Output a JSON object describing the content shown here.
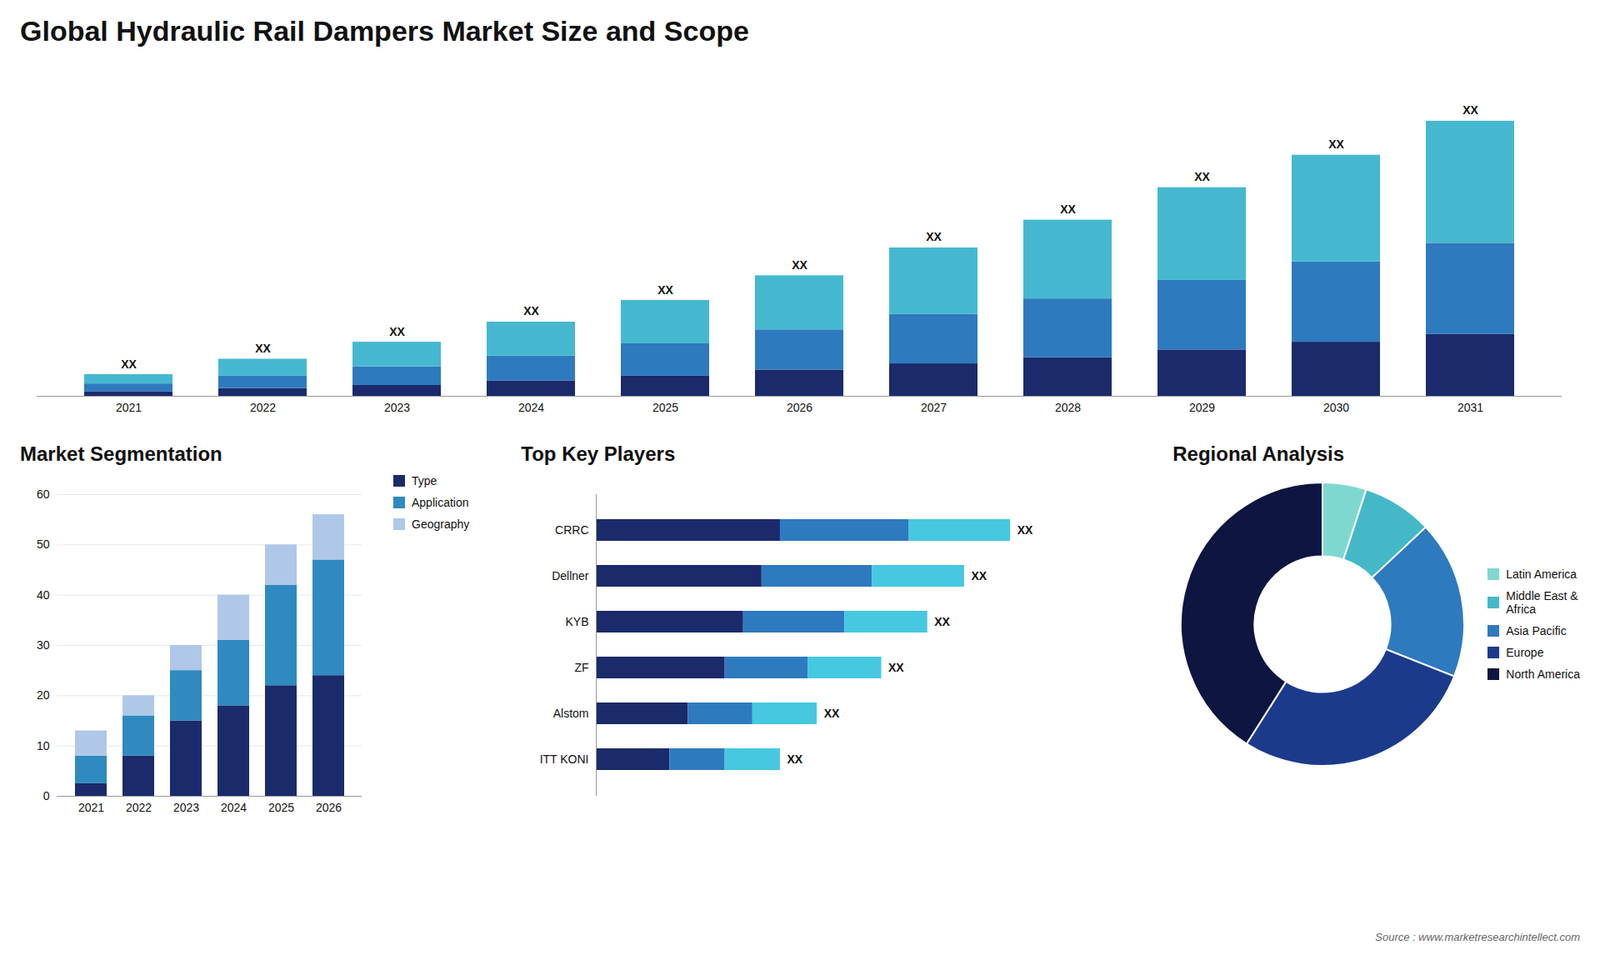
{
  "chart_data": [
    {
      "type": "bar",
      "stacked": true,
      "title": "Global Hydraulic Rail Dampers Market Size and Scope",
      "categories": [
        "2021",
        "2022",
        "2023",
        "2024",
        "2025",
        "2026",
        "2027",
        "2028",
        "2029",
        "2030",
        "2031"
      ],
      "series": [
        {
          "color": "#1b2a6b",
          "values": [
            1.5,
            2.5,
            3.5,
            5.0,
            6.5,
            8.5,
            10.5,
            12.5,
            15.0,
            17.5,
            20.0
          ]
        },
        {
          "color": "#2e7abf",
          "values": [
            2.5,
            4.0,
            6.0,
            8.0,
            10.5,
            13.0,
            16.0,
            19.0,
            22.5,
            26.0,
            29.5
          ]
        },
        {
          "color": "#45b8d0",
          "values": [
            3.0,
            5.5,
            8.0,
            11.0,
            14.0,
            17.5,
            21.5,
            25.5,
            30.0,
            34.5,
            39.5
          ]
        }
      ],
      "ylim": [
        0,
        103
      ],
      "tick_labels": "x",
      "annotations": [
        "XX",
        "XX",
        "XX",
        "XX",
        "XX",
        "XX",
        "XX",
        "XX",
        "XX",
        "XX",
        "XX"
      ]
    },
    {
      "type": "bar",
      "stacked": true,
      "title": "Market Segmentation",
      "categories": [
        "2021",
        "2022",
        "2023",
        "2024",
        "2025",
        "2026"
      ],
      "series": [
        {
          "name": "Type",
          "color": "#1b2a6b",
          "values": [
            2.5,
            8.0,
            15.0,
            18.0,
            22.0,
            24.0
          ]
        },
        {
          "name": "Application",
          "color": "#2e8abf",
          "values": [
            5.5,
            8.0,
            10.0,
            13.0,
            20.0,
            23.0
          ]
        },
        {
          "name": "Geography",
          "color": "#b0c8e8",
          "values": [
            5.0,
            4.0,
            5.0,
            9.0,
            8.0,
            9.0
          ]
        }
      ],
      "ylim": [
        0,
        60
      ],
      "yticks": [
        0,
        10,
        20,
        30,
        40,
        50,
        60
      ],
      "grid": true,
      "legend": "right"
    },
    {
      "type": "bar",
      "orientation": "horizontal",
      "stacked": true,
      "title": "Top Key Players",
      "categories": [
        "CRRC",
        "Dellner",
        "KYB",
        "ZF",
        "Alstom",
        "ITT KONI"
      ],
      "series": [
        {
          "color": "#1b2a6b",
          "values": [
            40,
            36,
            32,
            28,
            20,
            16
          ]
        },
        {
          "color": "#2e7abf",
          "values": [
            28,
            24,
            22,
            18,
            14,
            12
          ]
        },
        {
          "color": "#45c8e0",
          "values": [
            22,
            20,
            18,
            16,
            14,
            12
          ]
        }
      ],
      "xlim": [
        0,
        105
      ],
      "tick_labels": "y",
      "annotations": [
        "XX",
        "XX",
        "XX",
        "XX",
        "XX",
        "XX"
      ]
    },
    {
      "type": "donut",
      "title": "Regional Analysis",
      "categories": [
        "Latin America",
        "Middle East &\nAfrica",
        "Asia Pacific",
        "Europe",
        "North America"
      ],
      "values": [
        5,
        8,
        18,
        28,
        41
      ],
      "colors": [
        "#7fd8d0",
        "#45b8c8",
        "#2e7abf",
        "#1b3a8c",
        "#0d1540"
      ],
      "legend": "right",
      "annotations": [
        "Source : www.marketresearchintellect.com"
      ]
    }
  ]
}
